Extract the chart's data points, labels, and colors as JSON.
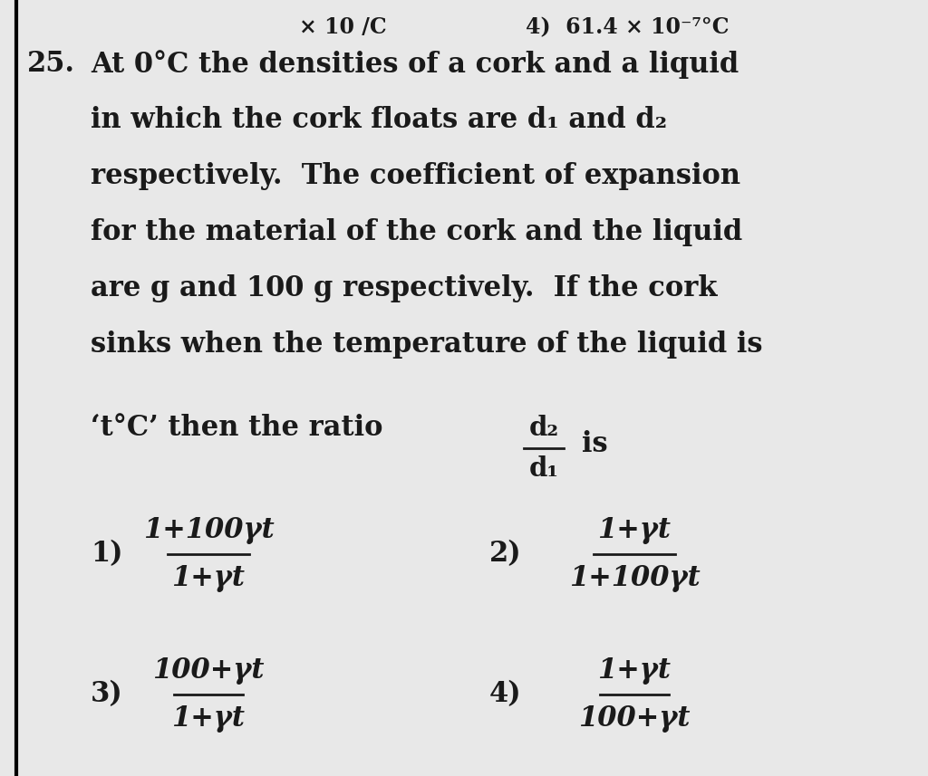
{
  "bg_color": "#e8e8e8",
  "text_color": "#1a1a1a",
  "figsize": [
    10.24,
    8.57
  ],
  "dpi": 100,
  "options": [
    {
      "label": "1)",
      "numerator": "1+100γt",
      "denominator": "1+γt"
    },
    {
      "label": "2)",
      "numerator": "1+γt",
      "denominator": "1+100γt"
    },
    {
      "label": "3)",
      "numerator": "100+γt",
      "denominator": "1+γt"
    },
    {
      "label": "4)",
      "numerator": "1+γt",
      "denominator": "100+γt"
    }
  ]
}
